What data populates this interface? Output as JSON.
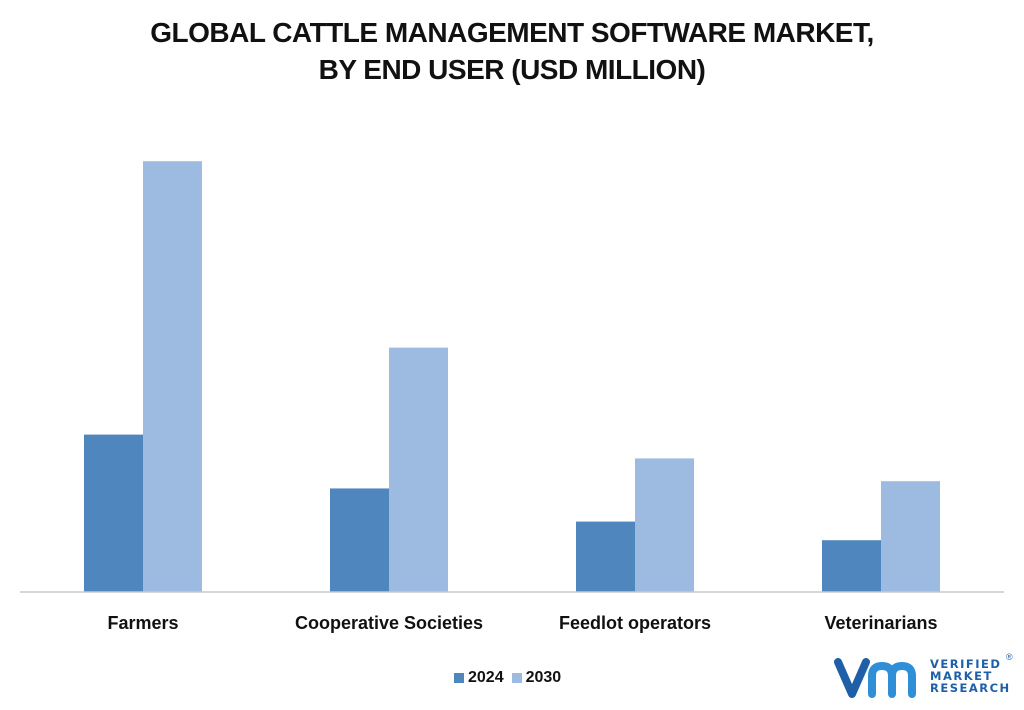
{
  "title": {
    "line1": "GLOBAL CATTLE MANAGEMENT SOFTWARE MARKET,",
    "line2": "BY END USER (USD MILLION)"
  },
  "chart_data": {
    "type": "bar",
    "title": "GLOBAL CATTLE MANAGEMENT SOFTWARE MARKET, BY END USER (USD MILLION)",
    "categories": [
      "Farmers",
      "Cooperative Societies",
      "Feedlot operators",
      "Veterinarians"
    ],
    "series": [
      {
        "name": "2024",
        "color": "#4f86bd",
        "values": [
          152,
          100,
          68,
          50
        ]
      },
      {
        "name": "2030",
        "color": "#9dbbe1",
        "values": [
          416,
          236,
          129,
          107
        ]
      }
    ],
    "ylim": [
      0,
      450
    ],
    "grid": false,
    "legend_position": "bottom-center",
    "xlabel": "",
    "ylabel": ""
  },
  "logo": {
    "line1": "VERIFIED",
    "line2": "MARKET",
    "line3": "RESEARCH",
    "registered": "®",
    "color": "#1f5fa8",
    "icon": "vmr-logo-icon"
  }
}
